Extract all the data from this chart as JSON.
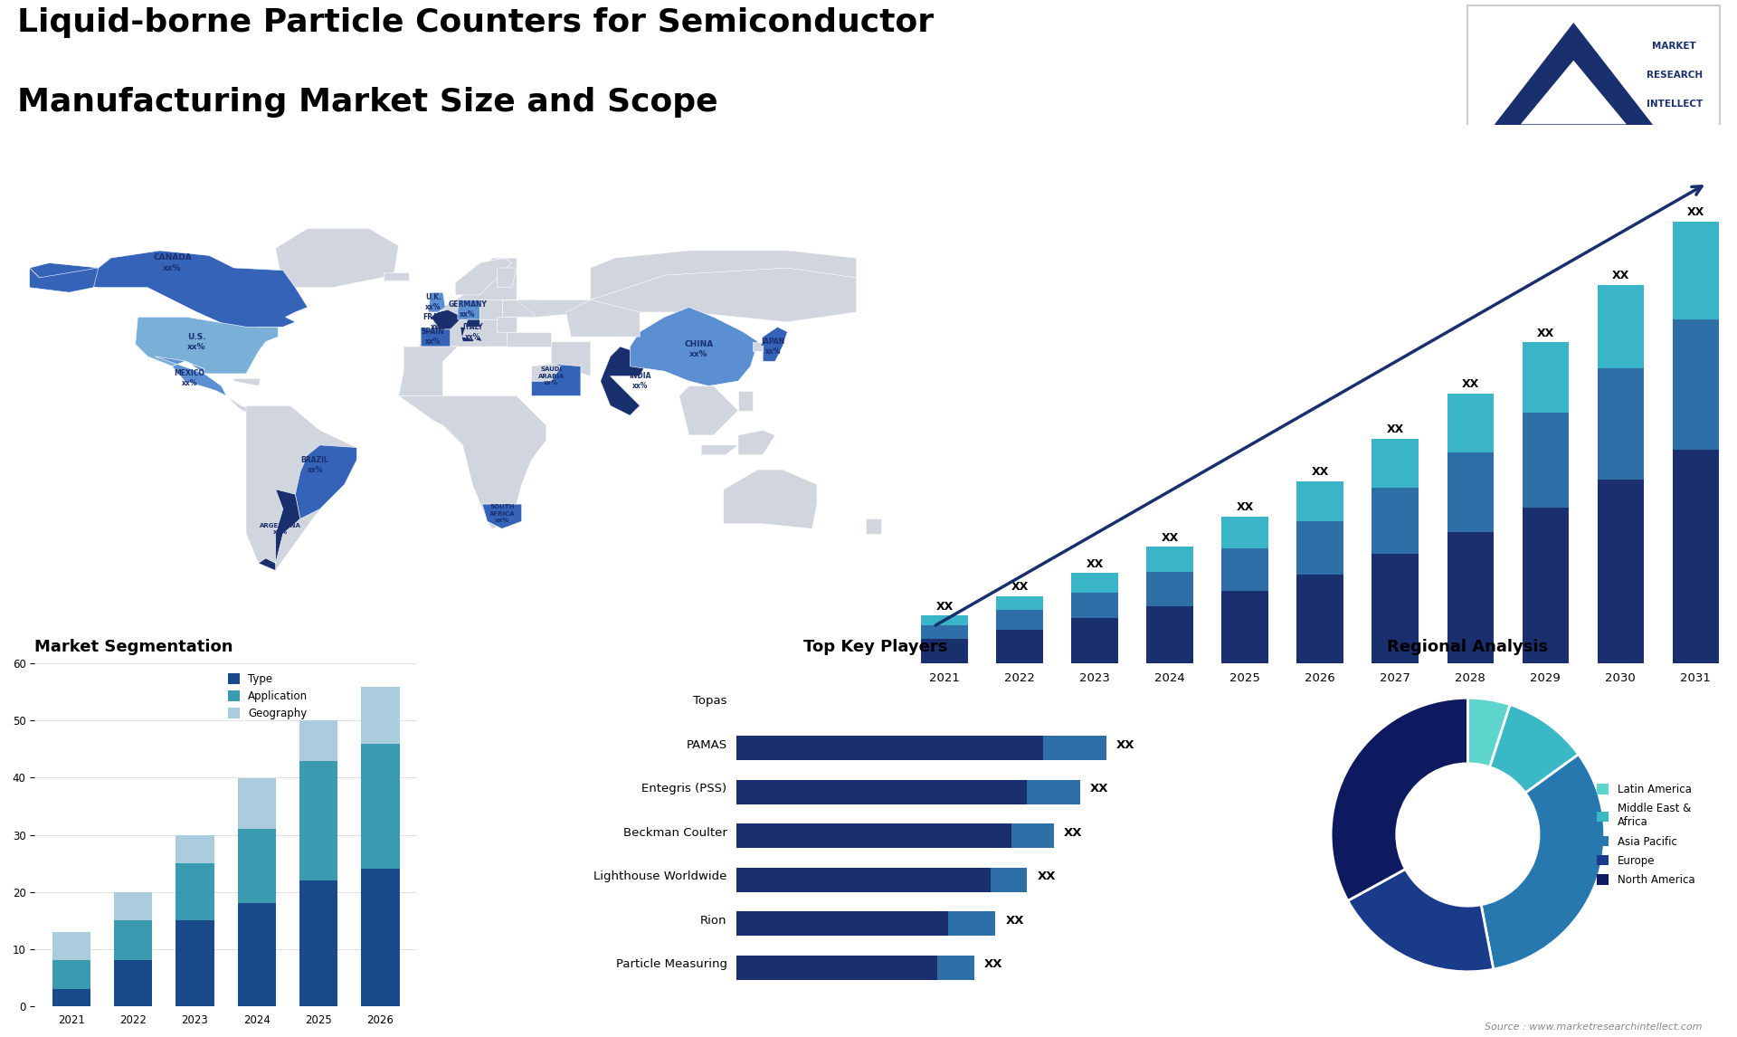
{
  "title_line1": "Liquid-borne Particle Counters for Semiconductor",
  "title_line2": "Manufacturing Market Size and Scope",
  "title_fontsize": 26,
  "background_color": "#ffffff",
  "bar_chart_years": [
    2021,
    2022,
    2023,
    2024,
    2025,
    2026,
    2027,
    2028,
    2029,
    2030,
    2031
  ],
  "bar_seg_dark": [
    1.8,
    2.5,
    3.3,
    4.2,
    5.3,
    6.5,
    8.0,
    9.6,
    11.4,
    13.4,
    15.6
  ],
  "bar_seg_mid": [
    1.0,
    1.4,
    1.9,
    2.5,
    3.1,
    3.9,
    4.8,
    5.8,
    6.9,
    8.1,
    9.5
  ],
  "bar_seg_light": [
    0.7,
    1.0,
    1.4,
    1.8,
    2.3,
    2.9,
    3.6,
    4.3,
    5.1,
    6.1,
    7.1
  ],
  "bar_colors": [
    "#1a2f6e",
    "#2e6fa8",
    "#3ab5c8"
  ],
  "bar_label": "XX",
  "seg_chart_years": [
    2021,
    2022,
    2023,
    2024,
    2025,
    2026
  ],
  "seg_type": [
    3,
    8,
    15,
    18,
    22,
    24
  ],
  "seg_app": [
    5,
    7,
    10,
    13,
    21,
    22
  ],
  "seg_geo": [
    5,
    5,
    5,
    9,
    7,
    10
  ],
  "seg_colors": [
    "#1a4a8a",
    "#3a9aaf",
    "#aaccdd"
  ],
  "seg_title": "Market Segmentation",
  "seg_ylim": [
    0,
    60
  ],
  "seg_legend": [
    "Type",
    "Application",
    "Geography"
  ],
  "players": [
    "Topas",
    "PAMAS",
    "Entegris (PSS)",
    "Beckman Coulter",
    "Lighthouse Worldwide",
    "Rion",
    "Particle Measuring"
  ],
  "players_bar_dark": [
    0,
    5.8,
    5.5,
    5.2,
    4.8,
    4.0,
    3.8
  ],
  "players_bar_light": [
    0,
    1.2,
    1.0,
    0.8,
    0.7,
    0.9,
    0.7
  ],
  "players_colors": [
    "#1a2f6e",
    "#2e6fa8"
  ],
  "players_title": "Top Key Players",
  "pie_values": [
    5,
    10,
    32,
    20,
    33
  ],
  "pie_colors": [
    "#5dd5cc",
    "#3ab8c5",
    "#2878b0",
    "#1a3a8a",
    "#0d1a60"
  ],
  "pie_labels": [
    "Latin America",
    "Middle East &\nAfrica",
    "Asia Pacific",
    "Europe",
    "North America"
  ],
  "pie_title": "Regional Analysis",
  "source_text": "Source : www.marketresearchintellect.com",
  "logo_bg": "#1a2f6e"
}
